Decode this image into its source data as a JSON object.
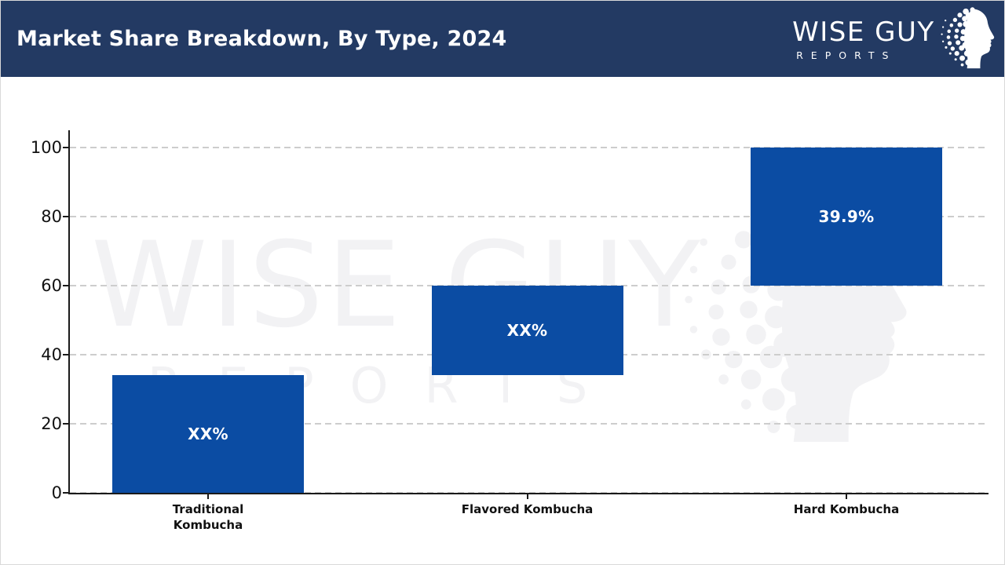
{
  "header": {
    "title": "Market Share Breakdown, By Type, 2024",
    "logo_line1": "WISE GUY",
    "logo_line2": "REPORTS"
  },
  "watermark": {
    "line1": "WISE GUY",
    "line2": "REPORTS"
  },
  "colors": {
    "header_bg": "#233A63",
    "bar_fill": "#0B4CA3",
    "bar_label": "#ffffff",
    "grid": "#cdcdcd",
    "axis": "#1a1a1a",
    "tick_text": "#111111",
    "watermark": "#f2f2f4"
  },
  "chart_data": {
    "type": "bar",
    "variant": "floating-waterfall",
    "title": "Market Share Breakdown, By Type, 2024",
    "xlabel": "",
    "ylabel": "",
    "categories": [
      "Traditional Kombucha",
      "Flavored Kombucha",
      "Hard Kombucha"
    ],
    "category_display": [
      "Traditional\nKombucha",
      "Flavored Kombucha",
      "Hard Kombucha"
    ],
    "series": [
      {
        "name": "Market share (%)",
        "segments": [
          {
            "category": "Traditional Kombucha",
            "start": 0,
            "end": 34,
            "label": "XX%"
          },
          {
            "category": "Flavored Kombucha",
            "start": 34,
            "end": 60,
            "label": "XX%"
          },
          {
            "category": "Hard Kombucha",
            "start": 60.1,
            "end": 100,
            "label": "39.9%"
          }
        ]
      }
    ],
    "ylim": [
      0,
      105
    ],
    "yticks": [
      0,
      20,
      40,
      60,
      80,
      100
    ],
    "grid": "horizontal-dashed",
    "legend": "none"
  }
}
